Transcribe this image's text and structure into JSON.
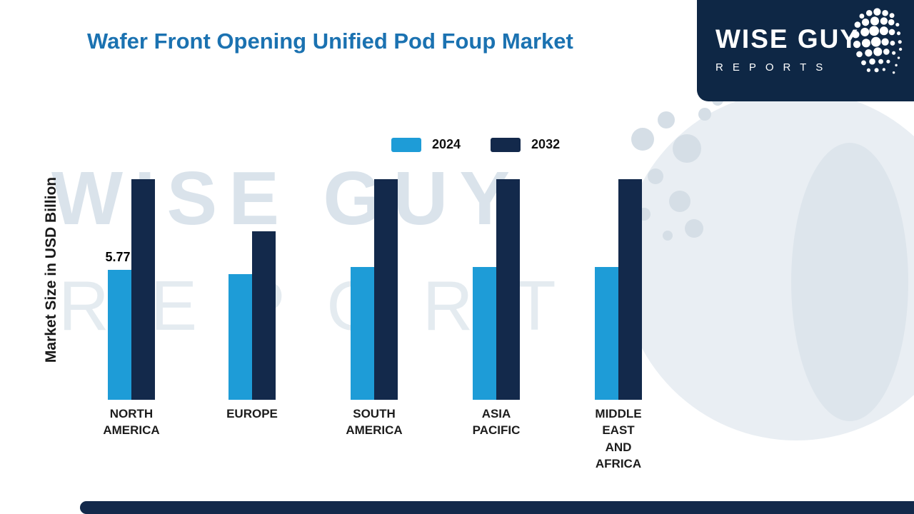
{
  "page": {
    "title": "Wafer Front Opening Unified Pod Foup Market"
  },
  "logo": {
    "brand_line1": "WISE GUY",
    "brand_line2": "REPORTS"
  },
  "watermark": {
    "line1": "WISE GUY",
    "line2": "REPORTS"
  },
  "colors": {
    "title_blue": "#1b72b1",
    "series_2024": "#1e9cd7",
    "series_2032": "#13294b",
    "logo_navy": "#0e2745",
    "watermark_gray": "#dfe7ee"
  },
  "chart_data": {
    "type": "bar",
    "title": "Wafer Front Opening Unified Pod Foup Market",
    "xlabel": "",
    "ylabel": "Market Size in USD Billion",
    "ylim": [
      0,
      10.5
    ],
    "grid": false,
    "legend_position": "top-center",
    "categories": [
      "NORTH AMERICA",
      "EUROPE",
      "SOUTH AMERICA",
      "ASIA PACIFIC",
      "MIDDLE EAST AND AFRICA"
    ],
    "category_lines": [
      [
        "NORTH",
        "AMERICA"
      ],
      [
        "EUROPE"
      ],
      [
        "SOUTH",
        "AMERICA"
      ],
      [
        "ASIA",
        "PACIFIC"
      ],
      [
        "MIDDLE",
        "EAST",
        "AND",
        "AFRICA"
      ]
    ],
    "series": [
      {
        "name": "2024",
        "color": "#1e9cd7",
        "values": [
          5.77,
          5.6,
          5.9,
          5.9,
          5.9
        ]
      },
      {
        "name": "2032",
        "color": "#13294b",
        "values": [
          9.8,
          7.5,
          9.8,
          9.8,
          9.8
        ]
      }
    ],
    "data_labels": [
      {
        "series_index": 0,
        "category_index": 0,
        "text": "5.77"
      }
    ]
  }
}
